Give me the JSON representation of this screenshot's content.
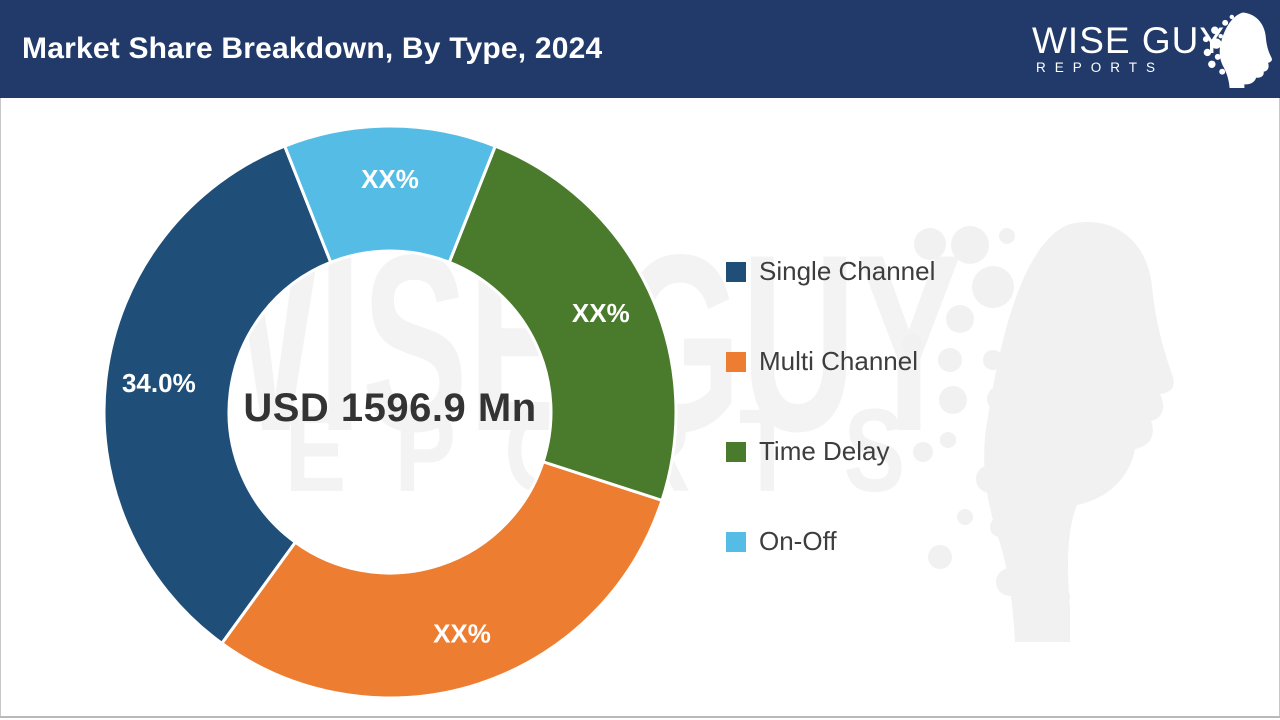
{
  "header": {
    "title": "Market Share Breakdown, By Type, 2024",
    "logo": {
      "wordmark": "WISE GUY",
      "tagline": "REPORTS"
    }
  },
  "watermark": {
    "line1": "WISE GUY",
    "line2": "REPORTS"
  },
  "chart_data": {
    "type": "pie",
    "subtype": "donut",
    "title": "Market Share Breakdown, By Type, 2024",
    "center_label": "USD 1596.9 Mn",
    "legend_position": "right",
    "start_angle_deg": 111.6,
    "direction": "counterclockwise",
    "slices": [
      {
        "name": "Single Channel",
        "value_pct": 34.0,
        "label": "34.0%",
        "color": "#1f4e79"
      },
      {
        "name": "Multi Channel",
        "value_pct": 30.0,
        "label": "XX%",
        "color": "#ed7d31"
      },
      {
        "name": "Time Delay",
        "value_pct": 24.0,
        "label": "XX%",
        "color": "#4a7a2b"
      },
      {
        "name": "On-Off",
        "value_pct": 12.0,
        "label": "XX%",
        "color": "#55bde5"
      }
    ]
  },
  "colors": {
    "header_bg": "#213a69",
    "center_text": "#333333",
    "legend_text": "#3d3d3d",
    "watermark": "#f3f3f3",
    "slice_label": "#ffffff",
    "slice_border": "#ffffff"
  }
}
